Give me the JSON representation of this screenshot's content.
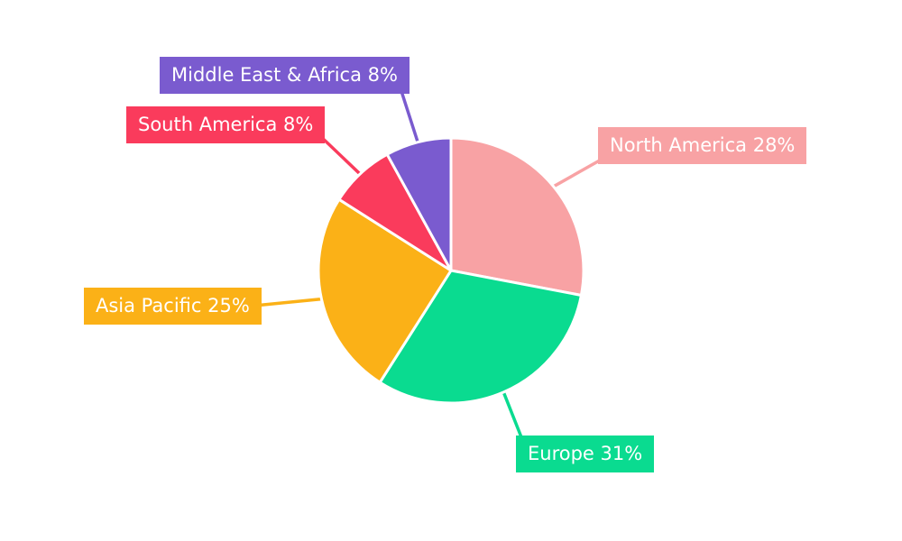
{
  "chart_data": {
    "type": "pie",
    "title": "",
    "labels": [
      "North America",
      "Europe",
      "Asia Pacific",
      "South America",
      "Middle East & Africa"
    ],
    "values": [
      28,
      31,
      25,
      8,
      8
    ],
    "unit": "%",
    "colors": [
      "#F8A2A4",
      "#0ADB90",
      "#FBB117",
      "#FA3B5C",
      "#7A5BCF"
    ],
    "start_angle": "12-oclock",
    "direction": "clockwise",
    "legend": "none",
    "label_style": "callout-boxes-with-leader-lines",
    "slice_gap_color": "#FFFFFF",
    "background": "#FFFFFF",
    "label_text_color": "#FFFFFF"
  },
  "callouts": [
    {
      "text": "North America 28%",
      "color": "#F8A2A4"
    },
    {
      "text": "Europe 31%",
      "color": "#0ADB90"
    },
    {
      "text": "Asia Pacific 25%",
      "color": "#FBB117"
    },
    {
      "text": "South America 8%",
      "color": "#FA3B5C"
    },
    {
      "text": "Middle East & Africa 8%",
      "color": "#7A5BCF"
    }
  ]
}
